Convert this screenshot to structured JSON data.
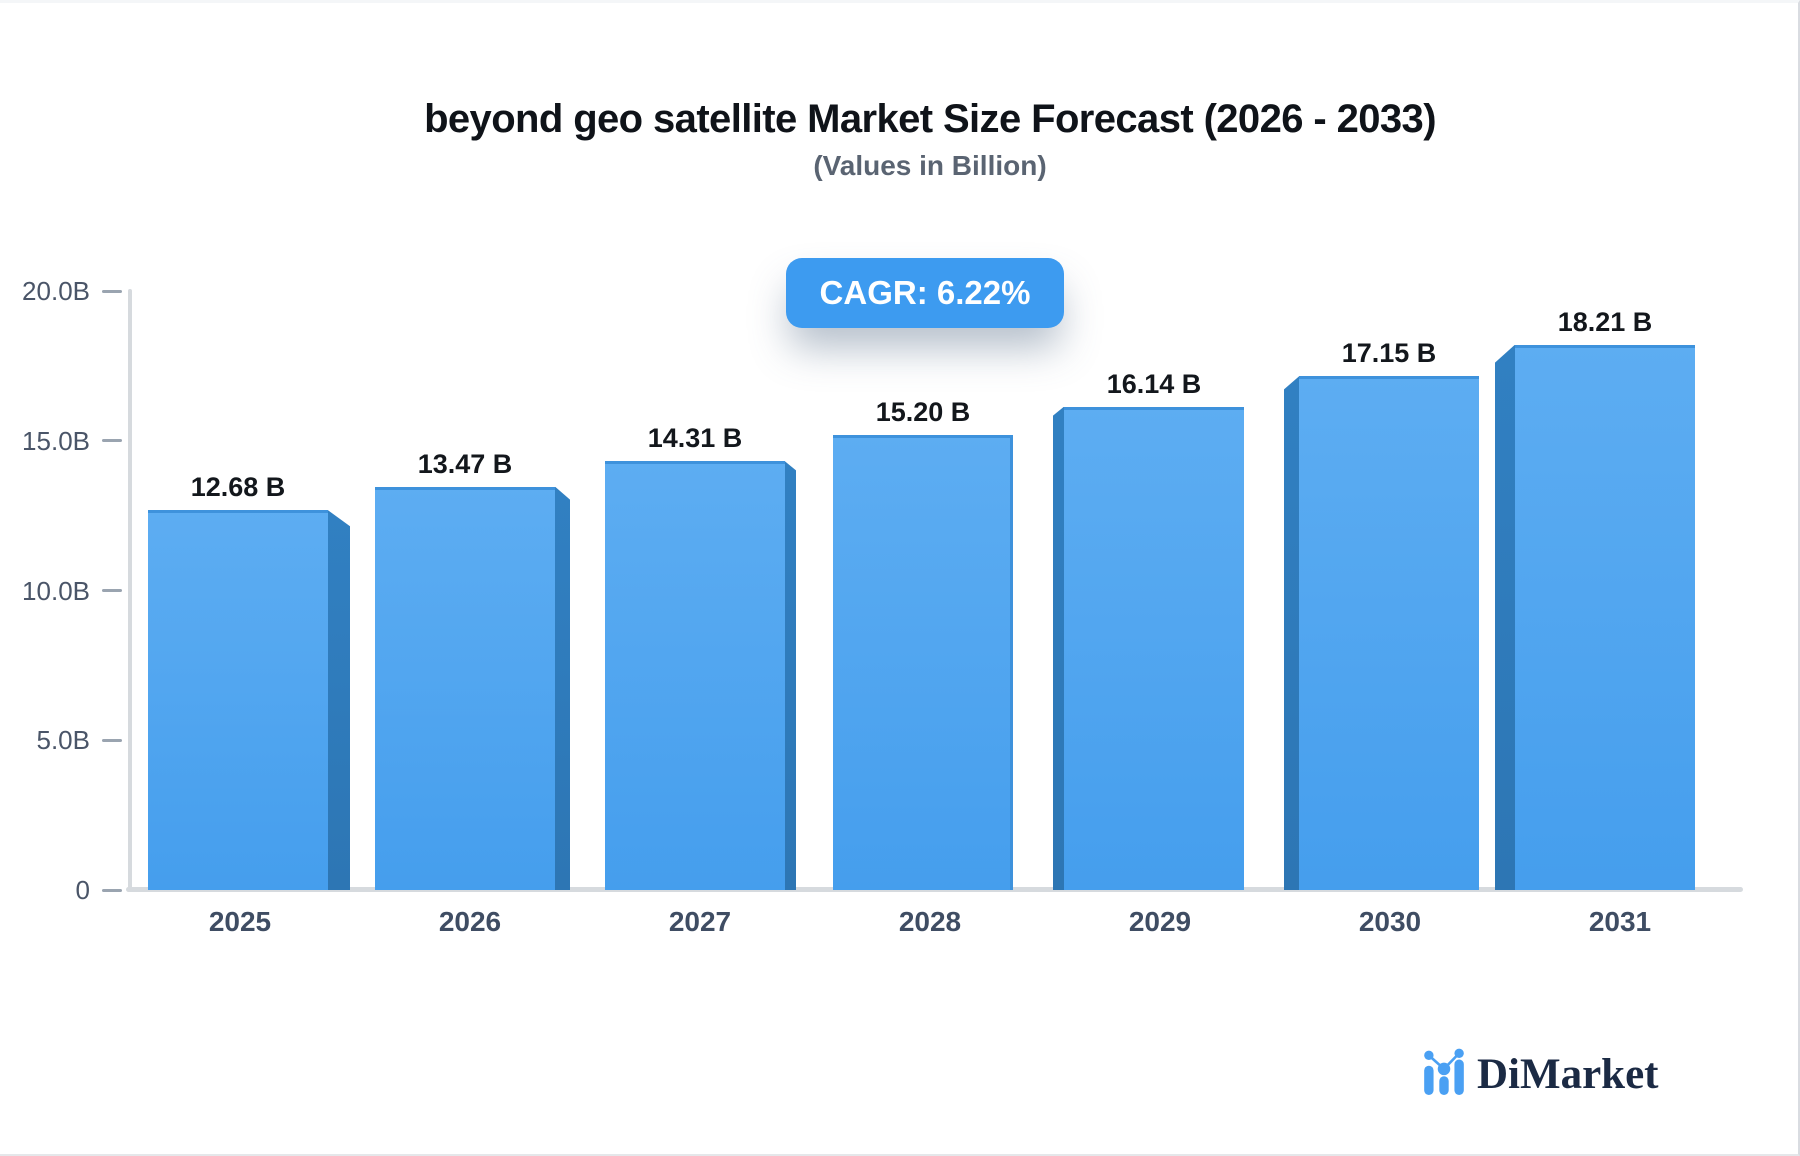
{
  "title": "beyond geo satellite Market Size Forecast (2026 - 2033)",
  "subtitle": "(Values in Billion)",
  "cagr_badge": "CAGR: 6.22%",
  "brand": {
    "name": "DiMarket",
    "icon": "dimarket-bar-chart-logo-icon"
  },
  "chart_data": {
    "type": "bar",
    "title": "beyond geo satellite Market Size Forecast (2026 - 2033)",
    "subtitle": "(Values in Billion)",
    "annotation": "CAGR: 6.22%",
    "categories": [
      "2025",
      "2026",
      "2027",
      "2028",
      "2029",
      "2030",
      "2031"
    ],
    "values": [
      12.68,
      13.47,
      14.31,
      15.2,
      16.14,
      17.15,
      18.21
    ],
    "value_labels": [
      "12.68 B",
      "13.47 B",
      "14.31 B",
      "15.20 B",
      "16.14 B",
      "17.15 B",
      "18.21 B"
    ],
    "xlabel": "",
    "ylabel": "",
    "ylim": [
      0,
      20
    ],
    "yticks": [
      {
        "label": "20.0B",
        "value": 20
      },
      {
        "label": "15.0B",
        "value": 15
      },
      {
        "label": "10.0B",
        "value": 10
      },
      {
        "label": "5.0B",
        "value": 5
      },
      {
        "label": "0",
        "value": 0
      }
    ],
    "grid": false,
    "legend": false,
    "style": {
      "accent": "#3d9bf0",
      "bar_face_top": "#5dadf2",
      "bar_face_bottom": "#459eed",
      "bar_top_edge": "#3e92dc",
      "bar_3d_side": "#2d76b4",
      "axis_line": "#d6dade",
      "tick": "#9aa4b0",
      "y_label_color": "#4a5568",
      "x_label_color": "#3f4d63",
      "value_label_color": "#13171c"
    }
  }
}
